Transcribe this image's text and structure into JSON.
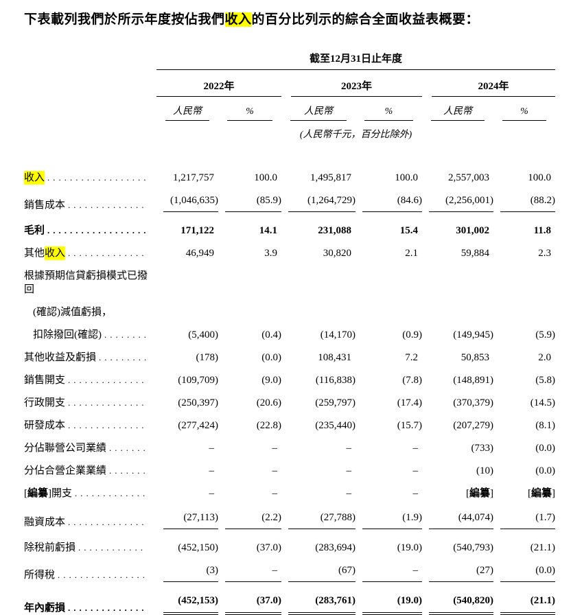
{
  "colors": {
    "highlight": "#ffff00",
    "text": "#000000"
  },
  "page": {
    "title_parts": [
      {
        "t": "下表載列我們於所示年度按佔我們"
      },
      {
        "t": "收入",
        "hl": true
      },
      {
        "t": "的百分比列示的綜合全面收益表概要："
      }
    ]
  },
  "table": {
    "period_header": "截至12月31日止年度",
    "year_groups": [
      "2022年",
      "2023年",
      "2024年"
    ],
    "col_headers": {
      "rmb": "人民幣",
      "pct": "%"
    },
    "unit_note": "(人民幣千元，百分比除外)",
    "rows": [
      {
        "label": [
          {
            "t": "收入",
            "hl": true
          }
        ],
        "dots": true,
        "values": [
          "1,217,757",
          "100.0",
          "1,495,817",
          "100.0",
          "2,557,003",
          "100.0"
        ]
      },
      {
        "label": [
          {
            "t": "銷售成本"
          }
        ],
        "dots": true,
        "rule": "s",
        "values": [
          "(1,046,635)",
          "(85.9)",
          "(1,264,729)",
          "(84.6)",
          "(2,256,001)",
          "(88.2)"
        ]
      },
      {
        "label": [
          {
            "t": "毛利"
          }
        ],
        "dots": true,
        "bold": true,
        "values": [
          "171,122",
          "14.1",
          "231,088",
          "15.4",
          "301,002",
          "11.8"
        ]
      },
      {
        "label": [
          {
            "t": "其他"
          },
          {
            "t": "收入",
            "hl": true
          }
        ],
        "dots": true,
        "values": [
          "46,949",
          "3.9",
          "30,820",
          "2.1",
          "59,884",
          "2.3"
        ]
      },
      {
        "label": [
          {
            "t": "根據預期信貸虧損模式已撥回"
          }
        ],
        "dots": false,
        "values": []
      },
      {
        "label": [
          {
            "t": "(確認)減值虧損，"
          }
        ],
        "dots": false,
        "indent": 1,
        "values": []
      },
      {
        "label": [
          {
            "t": "扣除撥回(確認)"
          }
        ],
        "dots": true,
        "indent": 1,
        "values": [
          "(5,400)",
          "(0.4)",
          "(14,170)",
          "(0.9)",
          "(149,945)",
          "(5.9)"
        ]
      },
      {
        "label": [
          {
            "t": "其他收益及虧損"
          }
        ],
        "dots": true,
        "values": [
          "(178)",
          "(0.0)",
          "108,431",
          "7.2",
          "50,853",
          "2.0"
        ]
      },
      {
        "label": [
          {
            "t": "銷售開支"
          }
        ],
        "dots": true,
        "values": [
          "(109,709)",
          "(9.0)",
          "(116,838)",
          "(7.8)",
          "(148,891)",
          "(5.8)"
        ]
      },
      {
        "label": [
          {
            "t": "行政開支"
          }
        ],
        "dots": true,
        "values": [
          "(250,397)",
          "(20.6)",
          "(259,797)",
          "(17.4)",
          "(370,379)",
          "(14.5)"
        ]
      },
      {
        "label": [
          {
            "t": "研發成本"
          }
        ],
        "dots": true,
        "values": [
          "(277,424)",
          "(22.8)",
          "(235,440)",
          "(15.7)",
          "(207,279)",
          "(8.1)"
        ]
      },
      {
        "label": [
          {
            "t": "分佔聯營公司業績"
          }
        ],
        "dots": true,
        "values": [
          "–",
          "–",
          "–",
          "–",
          "(733)",
          "(0.0)"
        ]
      },
      {
        "label": [
          {
            "t": "分佔合營企業業績"
          }
        ],
        "dots": true,
        "values": [
          "–",
          "–",
          "–",
          "–",
          "(10)",
          "(0.0)"
        ]
      },
      {
        "label": [
          {
            "t": "["
          },
          {
            "t": "編纂",
            "b": true
          },
          {
            "t": "]"
          },
          {
            "t": "開支"
          }
        ],
        "dots": true,
        "values": [
          "–",
          "–",
          "–",
          "–",
          "[編纂]",
          "[編纂]"
        ]
      },
      {
        "label": [
          {
            "t": "融資成本"
          }
        ],
        "dots": true,
        "gap": true,
        "rule": "s",
        "values": [
          "(27,113)",
          "(2.2)",
          "(27,788)",
          "(1.9)",
          "(44,074)",
          "(1.7)"
        ]
      },
      {
        "label": [
          {
            "t": "除稅前虧損"
          }
        ],
        "dots": true,
        "values": [
          "(452,150)",
          "(37.0)",
          "(283,694)",
          "(19.0)",
          "(540,793)",
          "(21.1)"
        ]
      },
      {
        "label": [
          {
            "t": "所得稅"
          }
        ],
        "dots": true,
        "rule": "s",
        "values": [
          "(3)",
          "–",
          "(67)",
          "–",
          "(27)",
          "(0.0)"
        ]
      },
      {
        "label": [
          {
            "t": "年內虧損"
          }
        ],
        "dots": true,
        "bold": true,
        "rule": "d",
        "values": [
          "(452,153)",
          "(37.0)",
          "(283,761)",
          "(19.0)",
          "(540,820)",
          "(21.1)"
        ]
      }
    ]
  }
}
